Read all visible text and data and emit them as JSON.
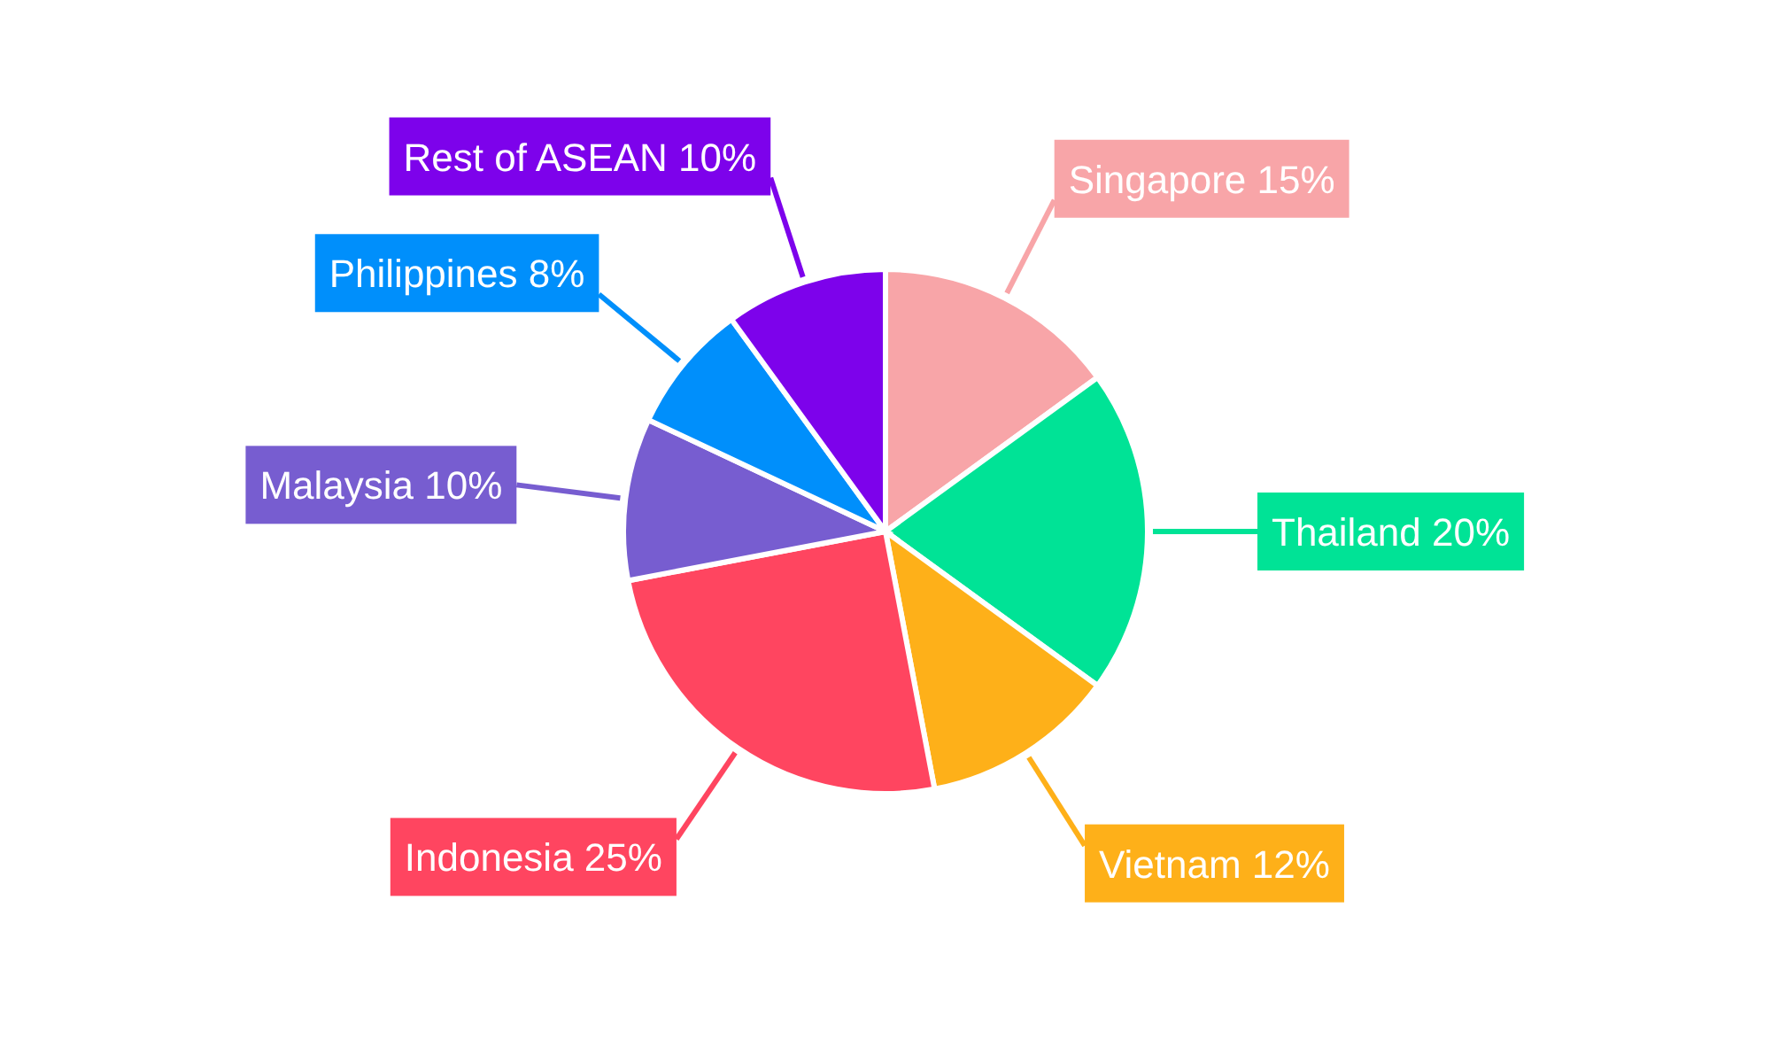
{
  "chart_data": {
    "type": "pie",
    "categories": [
      "Singapore",
      "Thailand",
      "Vietnam",
      "Indonesia",
      "Malaysia",
      "Philippines",
      "Rest of ASEAN"
    ],
    "values": [
      15,
      20,
      12,
      25,
      10,
      8,
      10
    ],
    "value_labels": [
      "15%",
      "20%",
      "12%",
      "25%",
      "10%",
      "8%",
      "10%"
    ],
    "colors": [
      "#f8a5a8",
      "#00e396",
      "#feb019",
      "#ff4560",
      "#775dd0",
      "#008ffb",
      "#7d02eb"
    ]
  }
}
